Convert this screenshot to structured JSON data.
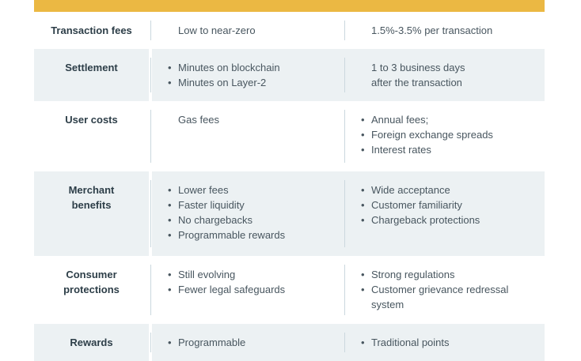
{
  "colors": {
    "header_bar": "#EBB843",
    "row_shaded_bg": "#ECF1F3",
    "row_plain_bg": "#FFFFFF",
    "divider": "#CBD8DE",
    "label_text": "#2D3E48",
    "body_text": "#48565F"
  },
  "icons": {
    "bullet": "•"
  },
  "table": {
    "rows": [
      {
        "label": "Transaction fees",
        "shaded": false,
        "col_left": {
          "bulleted": false,
          "items": [
            "Low to near-zero"
          ]
        },
        "col_right": {
          "bulleted": false,
          "items": [
            "1.5%-3.5% per transaction"
          ]
        }
      },
      {
        "label": "Settlement",
        "shaded": true,
        "col_left": {
          "bulleted": true,
          "items": [
            "Minutes on blockchain",
            "Minutes on Layer-2"
          ]
        },
        "col_right": {
          "bulleted": false,
          "items": [
            "1 to 3 business days\nafter the transaction"
          ]
        }
      },
      {
        "label": "User costs",
        "shaded": false,
        "col_left": {
          "bulleted": false,
          "items": [
            "Gas fees"
          ]
        },
        "col_right": {
          "bulleted": true,
          "items": [
            "Annual fees;",
            "Foreign exchange spreads",
            "Interest rates"
          ]
        }
      },
      {
        "label": "Merchant\nbenefits",
        "shaded": true,
        "col_left": {
          "bulleted": true,
          "items": [
            "Lower fees",
            "Faster liquidity",
            "No chargebacks",
            "Programmable rewards"
          ]
        },
        "col_right": {
          "bulleted": true,
          "items": [
            "Wide acceptance",
            "Customer familiarity",
            "Chargeback protections"
          ]
        }
      },
      {
        "label": "Consumer\nprotections",
        "shaded": false,
        "col_left": {
          "bulleted": true,
          "items": [
            "Still evolving",
            "Fewer legal safeguards"
          ]
        },
        "col_right": {
          "bulleted": true,
          "items": [
            "Strong regulations",
            "Customer grievance redressal system"
          ]
        }
      },
      {
        "label": "Rewards",
        "shaded": true,
        "col_left": {
          "bulleted": true,
          "items": [
            "Programmable"
          ]
        },
        "col_right": {
          "bulleted": true,
          "items": [
            "Traditional points"
          ]
        }
      }
    ]
  }
}
